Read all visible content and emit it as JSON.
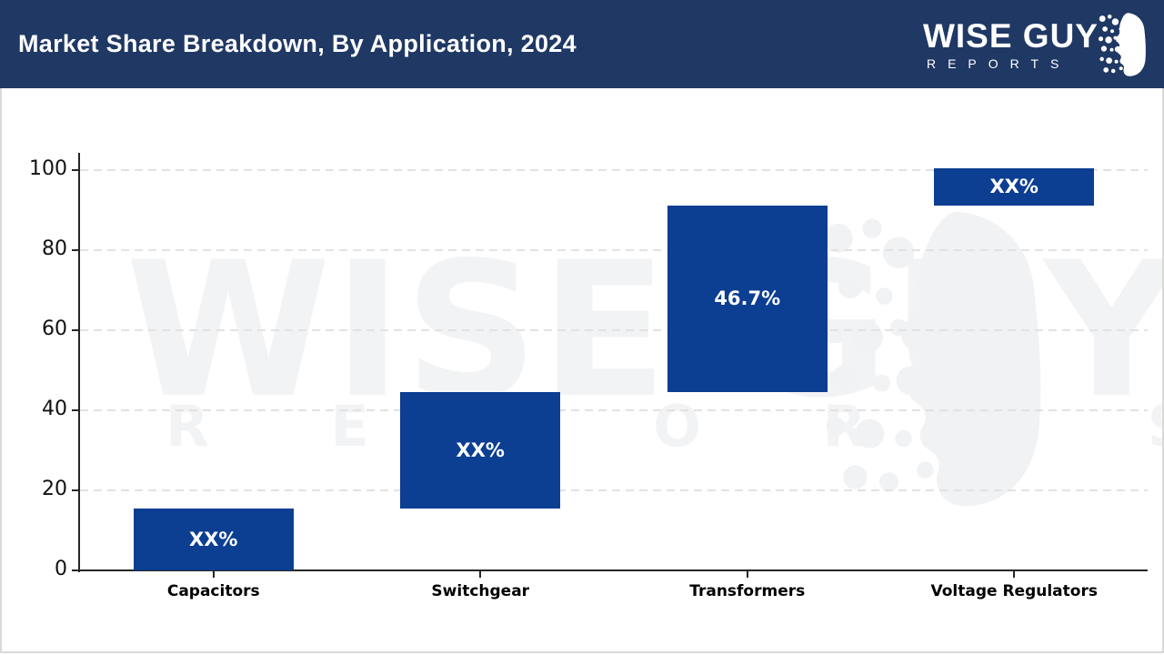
{
  "header": {
    "title": "Market Share Breakdown, By Application, 2024",
    "logo": {
      "line1": "WISE GUY",
      "line2": "REPORTS"
    }
  },
  "watermark": {
    "line1": "WISE GUY",
    "line2": "R E P O R T S"
  },
  "colors": {
    "header_bg": "#1f3864",
    "bar": "#0c3e92",
    "grid": "#e2e2e2",
    "axis": "#262626",
    "watermark": "#f2f3f5",
    "panel_border": "#d9d9d9",
    "bar_label_text": "#ffffff"
  },
  "chart_data": {
    "type": "bar",
    "subtype": "floating-waterfall",
    "title": "Market Share Breakdown, By Application, 2024",
    "categories": [
      "Capacitors",
      "Switchgear",
      "Transformers",
      "Voltage Regulators"
    ],
    "segments": [
      {
        "category": "Capacitors",
        "start": 0,
        "end": 15.5,
        "label": "XX%"
      },
      {
        "category": "Switchgear",
        "start": 15.5,
        "end": 44.5,
        "label": "XX%"
      },
      {
        "category": "Transformers",
        "start": 44.5,
        "end": 91.2,
        "label": "46.7%"
      },
      {
        "category": "Voltage Regulators",
        "start": 91.2,
        "end": 100.5,
        "label": "XX%"
      }
    ],
    "yticks": [
      0,
      20,
      40,
      60,
      80,
      100
    ],
    "ylim": [
      0,
      104.5
    ],
    "xlabel": "",
    "ylabel": "",
    "grid": "horizontal-dashed",
    "legend": "none"
  }
}
